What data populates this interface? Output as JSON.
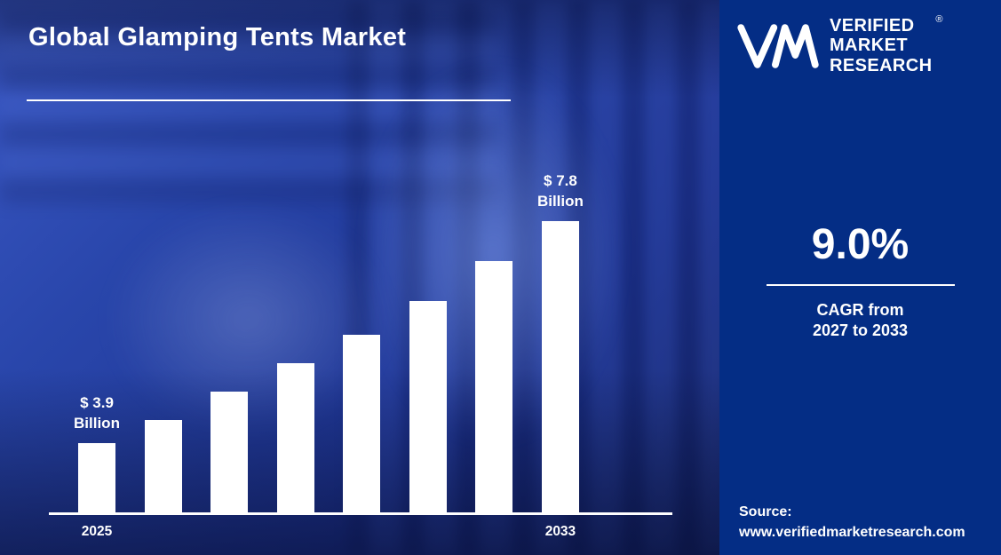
{
  "page": {
    "title": "Global Glamping Tents Market"
  },
  "logo": {
    "monogram": "VM-monogram",
    "lines": [
      "VERIFIED",
      "MARKET",
      "RESEARCH"
    ],
    "registered_mark": "®"
  },
  "panel": {
    "background": "#042d85",
    "cagr_value": "9.0%",
    "cagr_line1": "CAGR from",
    "cagr_line2": "2027 to 2033",
    "source_label": "Source:",
    "source_url": "www.verifiedmarketresearch.com"
  },
  "chart_data": {
    "type": "bar",
    "title": "Global Glamping Tents Market",
    "unit": "USD Billion",
    "bar_color": "#ffffff",
    "background_color": "#2946ab",
    "x_axis_labels": [
      "2025",
      "2033"
    ],
    "values": [
      3.9,
      4.3,
      4.8,
      5.3,
      5.8,
      6.4,
      7.1,
      7.8
    ],
    "ylim": [
      3.9,
      7.8
    ],
    "grid": false,
    "legend": false,
    "annotations": [
      {
        "bar_index": 0,
        "lines": [
          "$ 3.9",
          "Billion"
        ]
      },
      {
        "bar_index": 7,
        "lines": [
          "$ 7.8",
          "Billion"
        ]
      }
    ]
  }
}
